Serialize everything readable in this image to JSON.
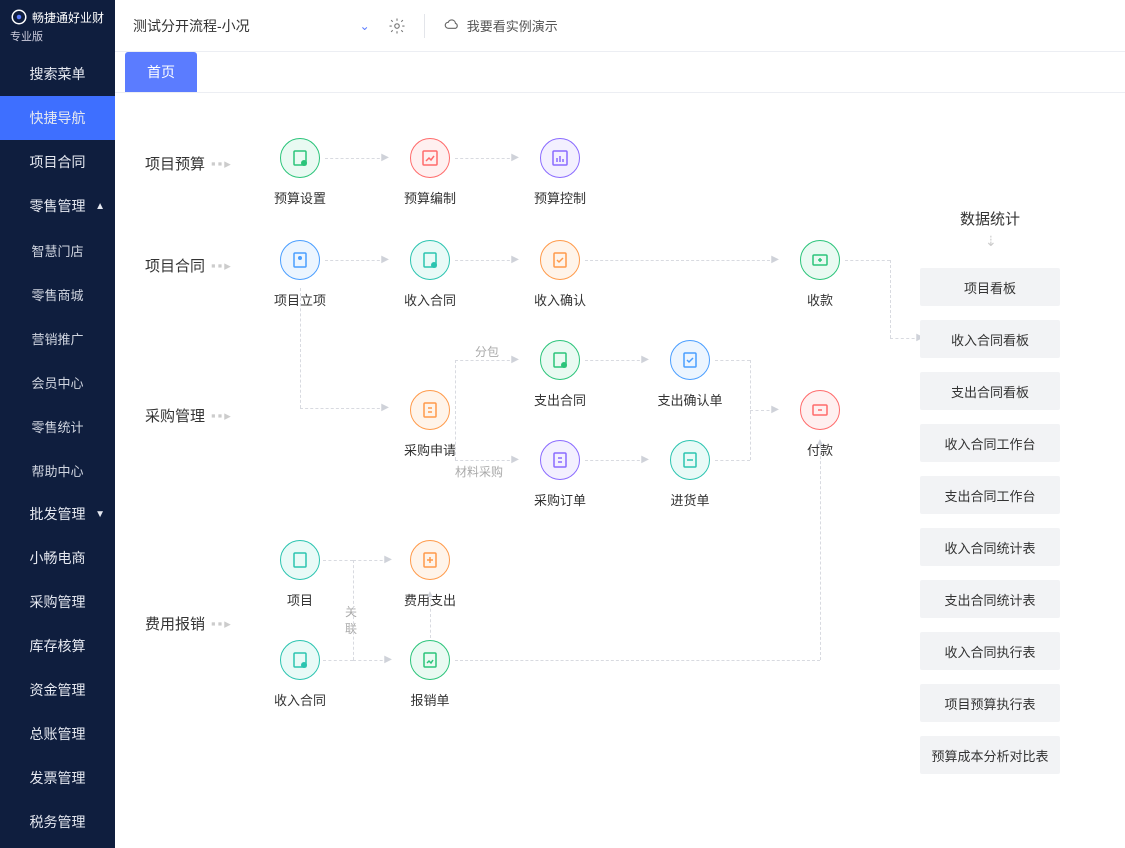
{
  "brand": {
    "name": "畅捷通好业财",
    "edition": "专业版"
  },
  "topbar": {
    "tenant": "测试分开流程-小况",
    "demo": "我要看实例演示"
  },
  "tabs": {
    "home": "首页"
  },
  "sidebar": {
    "search": "搜索菜单",
    "items": [
      {
        "label": "快捷导航",
        "active": true
      },
      {
        "label": "项目合同"
      },
      {
        "label": "零售管理",
        "expand": "up",
        "children": [
          "智慧门店",
          "零售商城",
          "营销推广",
          "会员中心",
          "零售统计",
          "帮助中心"
        ]
      },
      {
        "label": "批发管理",
        "expand": "down"
      },
      {
        "label": "小畅电商"
      },
      {
        "label": "采购管理"
      },
      {
        "label": "库存核算"
      },
      {
        "label": "资金管理"
      },
      {
        "label": "总账管理"
      },
      {
        "label": "发票管理"
      },
      {
        "label": "税务管理"
      }
    ]
  },
  "sections": {
    "budget": "项目预算",
    "contract": "项目合同",
    "purchase": "采购管理",
    "expense": "费用报销",
    "stats": "数据统计"
  },
  "nodes": {
    "budget_setup": "预算设置",
    "budget_compile": "预算编制",
    "budget_control": "预算控制",
    "proj_init": "项目立项",
    "income_contract": "收入合同",
    "income_confirm": "收入确认",
    "receipt": "收款",
    "purchase_req": "采购申请",
    "expense_contract": "支出合同",
    "expense_confirm": "支出确认单",
    "payment": "付款",
    "purchase_order": "采购订单",
    "goods_in": "进货单",
    "project": "项目",
    "expense_out": "费用支出",
    "income_contract2": "收入合同",
    "reimburse": "报销单",
    "subcontract": "分包",
    "material": "材料采购",
    "relation": "关\n联"
  },
  "colors": {
    "green": "#2bc47a",
    "red": "#ff6b6b",
    "purple": "#8a6bff",
    "blue": "#4a9eff",
    "orange": "#ff9a4a",
    "cyan": "#2bc4b0"
  },
  "stats": [
    "项目看板",
    "收入合同看板",
    "支出合同看板",
    "收入合同工作台",
    "支出合同工作台",
    "收入合同统计表",
    "支出合同统计表",
    "收入合同执行表",
    "项目预算执行表",
    "预算成本分析对比表"
  ]
}
